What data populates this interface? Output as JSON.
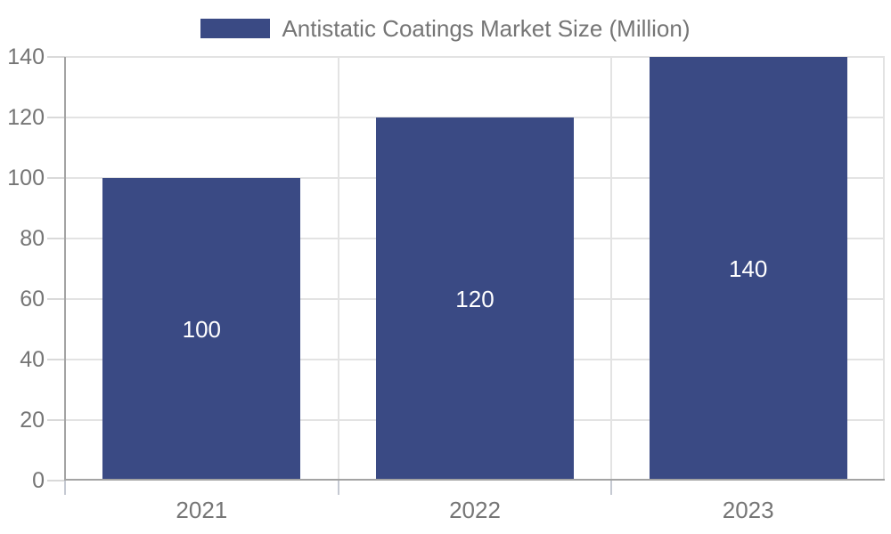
{
  "legend": {
    "label": "Antistatic Coatings Market Size (Million)"
  },
  "colors": {
    "bar": "#3A4A84",
    "grid": "#E3E3E3",
    "axis": "#A3A3A3",
    "tick_mark": "#D9D9D9",
    "below_axis_tick": "#C5C9D2",
    "tick_label": "#757575",
    "legend_text": "#757575",
    "data_label": "#FFFFFF",
    "background": "#FFFFFF"
  },
  "chart_data": {
    "type": "bar",
    "title": "Antistatic Coatings Market Size (Million)",
    "series": [
      {
        "name": "Antistatic Coatings Market Size (Million)",
        "values": [
          100,
          120,
          140
        ]
      }
    ],
    "categories": [
      "2021",
      "2022",
      "2023"
    ],
    "bar_labels": [
      "100",
      "120",
      "140"
    ],
    "xlabel": "",
    "ylabel": "",
    "ylim": [
      0,
      140
    ],
    "yticks": [
      0,
      20,
      40,
      60,
      80,
      100,
      120,
      140
    ],
    "grid": true,
    "band_separators": true,
    "legend_position": "top-center"
  }
}
